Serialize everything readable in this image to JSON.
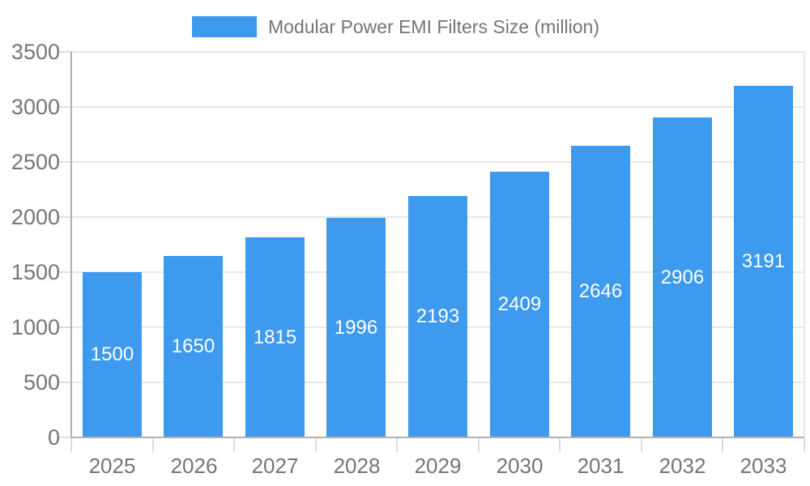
{
  "chart_data": {
    "type": "bar",
    "title": "Modular Power EMI Filters Size (million)",
    "categories": [
      "2025",
      "2026",
      "2027",
      "2028",
      "2029",
      "2030",
      "2031",
      "2032",
      "2033"
    ],
    "values": [
      1500,
      1650,
      1815,
      1996,
      2193,
      2409,
      2646,
      2906,
      3191
    ],
    "xlabel": "",
    "ylabel": "",
    "ylim": [
      0,
      3500
    ],
    "yticks": [
      0,
      500,
      1000,
      1500,
      2000,
      2500,
      3000,
      3500
    ],
    "grid": true,
    "legend_position": "top-center",
    "value_label_position": "inside-center",
    "colors": {
      "bar": "#3D9AEE",
      "bar_label_text": "#FFFFFF",
      "axis_text": "#757575",
      "legend_text": "#757575",
      "grid_line": "#E7E7E7",
      "axis_line": "#B0B0B0",
      "tick_line": "#DCDCDC",
      "background": "#FFFFFF"
    }
  }
}
